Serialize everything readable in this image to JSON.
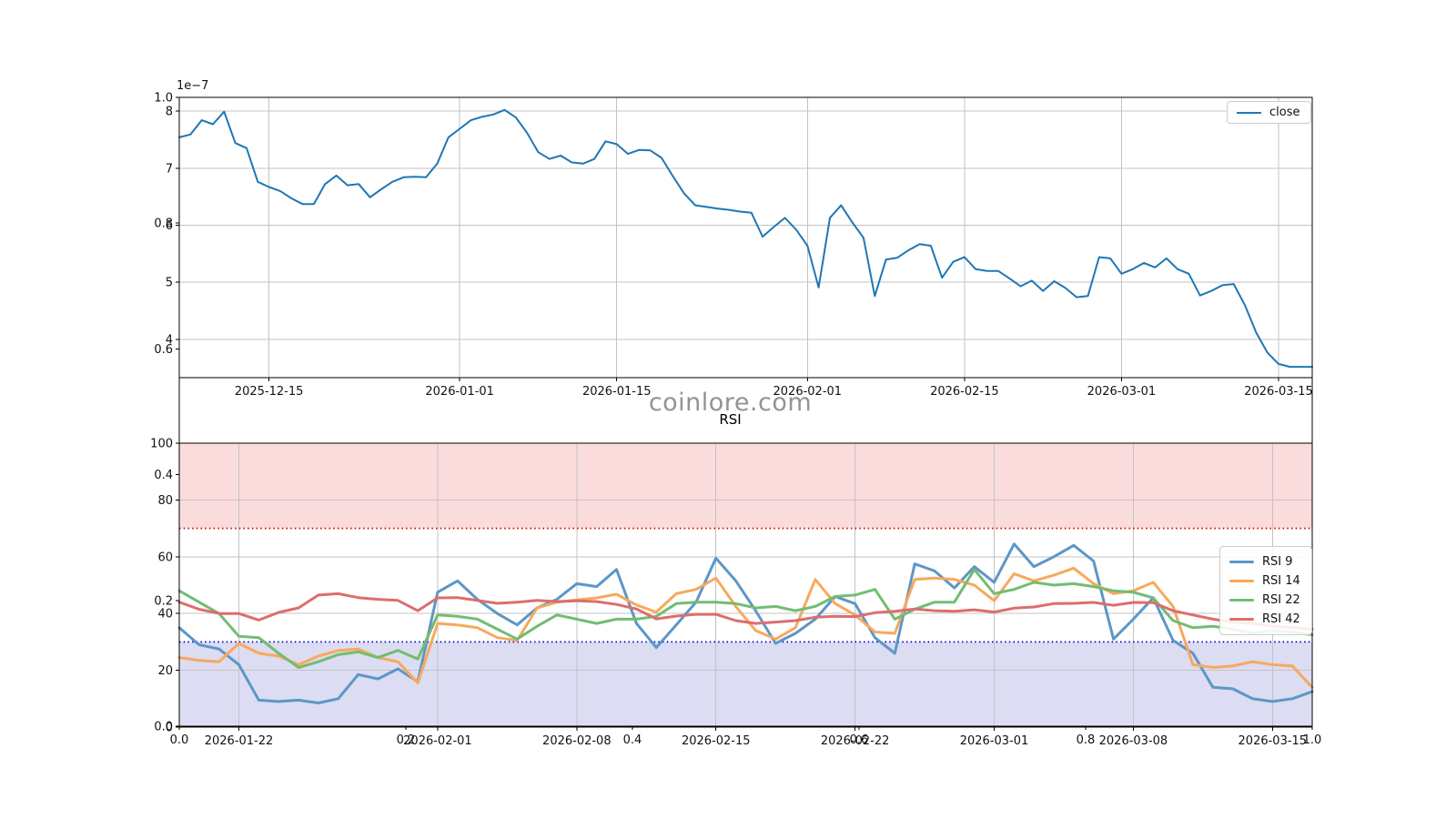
{
  "watermark": "coinlore.com",
  "overlay_axis": {
    "xticks": [
      "0.0",
      "0.2",
      "0.4",
      "0.6",
      "0.8",
      "1.0"
    ],
    "yticks": [
      "1.0",
      "0.8",
      "0.6",
      "0.4",
      "0.2",
      "0.0"
    ]
  },
  "chart_data": [
    {
      "id": "price",
      "type": "line",
      "title": "",
      "x_start": "2025-12-07",
      "x_step": "1 day",
      "y_offset_text": "1e−7",
      "ylim": [
        3.33,
        8.24
      ],
      "yticks": [
        8,
        7,
        6,
        5,
        4
      ],
      "xticks": [
        {
          "label": "2025-12-15",
          "index": 8
        },
        {
          "label": "2026-01-01",
          "index": 25
        },
        {
          "label": "2026-01-15",
          "index": 39
        },
        {
          "label": "2026-02-01",
          "index": 56
        },
        {
          "label": "2026-02-15",
          "index": 70
        },
        {
          "label": "2026-03-01",
          "index": 84
        },
        {
          "label": "2026-03-15",
          "index": 98
        }
      ],
      "grid": true,
      "legend_position": "upper right",
      "series": [
        {
          "name": "close",
          "color": "#1f77b4",
          "width": 2,
          "unit": "1e-7",
          "values": [
            7.54,
            7.59,
            7.84,
            7.77,
            7.99,
            7.44,
            7.35,
            6.76,
            6.67,
            6.6,
            6.47,
            6.37,
            6.37,
            6.72,
            6.87,
            6.7,
            6.72,
            6.49,
            6.63,
            6.76,
            6.84,
            6.85,
            6.84,
            7.08,
            7.54,
            7.69,
            7.84,
            7.9,
            7.94,
            8.02,
            7.89,
            7.62,
            7.28,
            7.16,
            7.22,
            7.1,
            7.08,
            7.16,
            7.47,
            7.42,
            7.25,
            7.32,
            7.31,
            7.18,
            6.86,
            6.56,
            6.35,
            6.32,
            6.29,
            6.27,
            6.24,
            6.22,
            5.8,
            5.97,
            6.13,
            5.92,
            5.64,
            4.91,
            6.13,
            6.35,
            6.05,
            5.78,
            4.76,
            5.4,
            5.43,
            5.56,
            5.67,
            5.64,
            5.08,
            5.36,
            5.44,
            5.23,
            5.2,
            5.2,
            5.07,
            4.93,
            5.03,
            4.85,
            5.02,
            4.9,
            4.74,
            4.76,
            5.44,
            5.42,
            5.15,
            5.23,
            5.34,
            5.26,
            5.42,
            5.23,
            5.15,
            4.77,
            4.85,
            4.95,
            4.97,
            4.6,
            4.12,
            3.77,
            3.57,
            3.52,
            3.52,
            3.52
          ]
        }
      ]
    },
    {
      "id": "rsi",
      "type": "line",
      "title": "RSI",
      "x_start": "2026-01-19",
      "x_step": "1 day",
      "ylim": [
        0,
        100
      ],
      "yticks": [
        100,
        80,
        60,
        40,
        20,
        0
      ],
      "xticks": [
        {
          "label": "2026-01-22",
          "index": 3
        },
        {
          "label": "2026-02-01",
          "index": 13
        },
        {
          "label": "2026-02-08",
          "index": 20
        },
        {
          "label": "2026-02-15",
          "index": 27
        },
        {
          "label": "2026-02-22",
          "index": 34
        },
        {
          "label": "2026-03-01",
          "index": 41
        },
        {
          "label": "2026-03-08",
          "index": 48
        },
        {
          "label": "2026-03-15",
          "index": 55
        }
      ],
      "grid": true,
      "bands": [
        {
          "from": 70,
          "to": 100,
          "color": "#fbdcdc",
          "meaning": "overbought"
        },
        {
          "from": 0,
          "to": 30,
          "color": "#dcdcf2",
          "meaning": "oversold"
        }
      ],
      "hlines": [
        {
          "value": 70,
          "color": "#dc0000",
          "style": "dotted"
        },
        {
          "value": 30,
          "color": "#0000cd",
          "style": "dotted"
        }
      ],
      "legend_position": "right",
      "series": [
        {
          "name": "RSI 9",
          "color": "#5c97c7",
          "width": 3,
          "values": [
            35,
            29,
            27.5,
            22,
            9.5,
            9,
            9.5,
            8.5,
            10,
            18.5,
            17,
            20.5,
            16,
            47.5,
            51.5,
            45,
            40,
            36,
            42,
            45,
            50.5,
            49.5,
            55.5,
            36.5,
            28,
            36,
            44,
            59.5,
            51.5,
            41,
            29.5,
            33,
            38,
            46,
            43.5,
            31.5,
            26,
            57.5,
            55,
            49,
            56.5,
            51,
            64.5,
            56.5,
            60,
            64,
            58.5,
            31,
            38,
            45.5,
            30.5,
            26,
            14,
            13.5,
            10,
            9,
            10,
            12.5
          ]
        },
        {
          "name": "RSI 14",
          "color": "#f7a95c",
          "width": 3,
          "values": [
            24.5,
            23.5,
            23,
            29.5,
            26,
            25,
            22,
            25,
            27,
            27.5,
            24.5,
            23,
            15.5,
            36.5,
            36,
            35,
            31.5,
            30.5,
            42,
            44,
            44.8,
            45.5,
            46.8,
            43,
            40.5,
            47,
            48.5,
            52.5,
            42.5,
            34,
            31,
            35,
            52,
            43.5,
            39.5,
            33.5,
            33,
            52,
            52.5,
            52,
            50,
            44.5,
            54,
            51.5,
            53.5,
            56,
            50.5,
            47,
            48,
            51,
            42.5,
            22,
            21,
            21.5,
            23,
            22,
            21.5,
            14
          ]
        },
        {
          "name": "RSI 22",
          "color": "#72bd72",
          "width": 3,
          "values": [
            48,
            44,
            40,
            32,
            31.5,
            26,
            21,
            23,
            25.5,
            26.5,
            24.5,
            27,
            24,
            39.5,
            39,
            38,
            34.5,
            31,
            35.5,
            39.5,
            38,
            36.5,
            38,
            38,
            39,
            43.5,
            44,
            44,
            43.5,
            42,
            42.5,
            41,
            42.5,
            46,
            46.5,
            48.5,
            38,
            41.5,
            44,
            44,
            55.5,
            47,
            48.5,
            51,
            50,
            50.5,
            49.5,
            48,
            47.5,
            45.5,
            37.5,
            35,
            35.5,
            34.5,
            33,
            34,
            33.5,
            32.5
          ]
        },
        {
          "name": "RSI 42",
          "color": "#dc6e6e",
          "width": 3,
          "values": [
            44,
            41.5,
            40,
            40,
            37.7,
            40.4,
            42,
            46.5,
            47,
            45.6,
            45,
            44.6,
            41,
            45.5,
            45.6,
            44.6,
            43.6,
            44,
            44.6,
            44.2,
            44.5,
            44.2,
            43.2,
            41.6,
            38.1,
            39.1,
            39.7,
            39.7,
            37.5,
            36.5,
            37,
            37.5,
            38.7,
            39,
            38.9,
            40.3,
            40.8,
            41.6,
            41,
            40.8,
            41.3,
            40.5,
            41.9,
            42.3,
            43.5,
            43.6,
            43.9,
            42.9,
            43.9,
            43.8,
            41,
            39.5,
            38,
            37,
            36.5,
            35.5,
            35,
            34.5
          ]
        }
      ]
    }
  ]
}
